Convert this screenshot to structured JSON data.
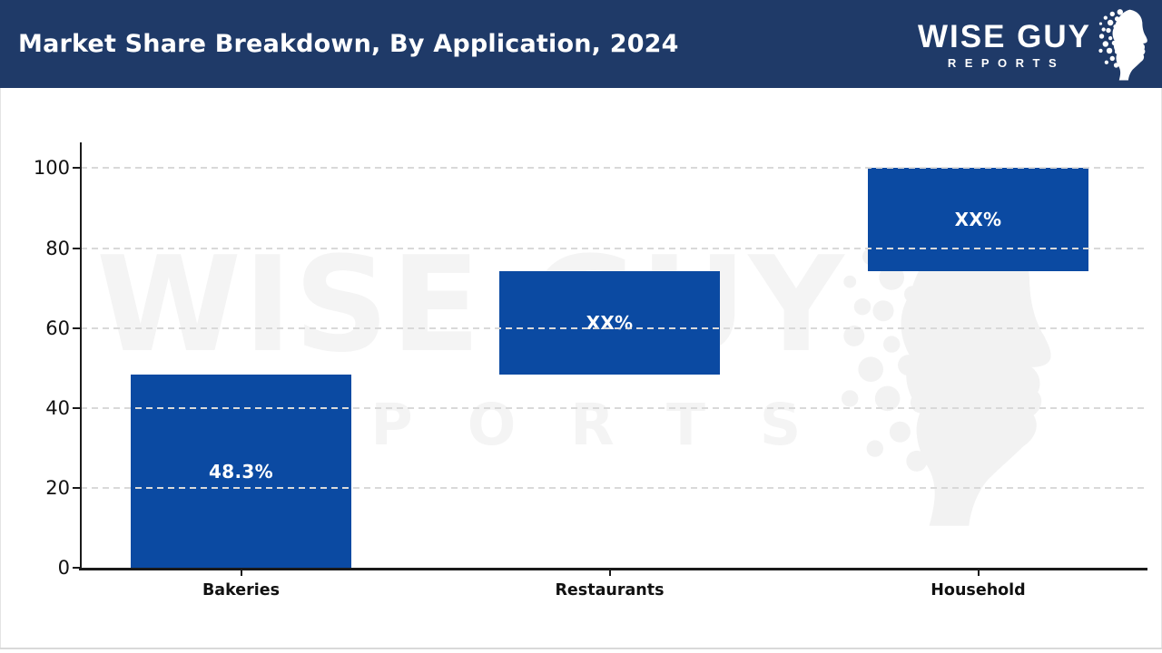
{
  "header": {
    "title": "Market Share Breakdown, By Application, 2024"
  },
  "logo": {
    "name": "WISE GUY",
    "sub": "REPORTS"
  },
  "watermark": {
    "line1": "WISE GUY",
    "line2": "REPORTS"
  },
  "chart_data": {
    "type": "bar",
    "subtype": "waterfall-stacked",
    "title": "Market Share Breakdown, By Application, 2024",
    "categories": [
      "Bakeries",
      "Restaurants",
      "Household"
    ],
    "segments": [
      {
        "category": "Bakeries",
        "start": 0,
        "end": 48.3,
        "label": "48.3%"
      },
      {
        "category": "Restaurants",
        "start": 48.3,
        "end": 74.3,
        "label": "XX%"
      },
      {
        "category": "Household",
        "start": 74.3,
        "end": 100,
        "label": "XX%"
      }
    ],
    "values": [
      48.3,
      26.0,
      25.7
    ],
    "labels": [
      "48.3%",
      "XX%",
      "XX%"
    ],
    "xlabel": "",
    "ylabel": "",
    "ylim": [
      0,
      106
    ],
    "yticks": [
      0,
      20,
      40,
      60,
      80,
      100
    ],
    "grid": "horizontal-dashed",
    "legend": false
  },
  "colors": {
    "header_bg": "#1f3a68",
    "bar": "#0b4aa2",
    "bar_label": "#ffffff",
    "grid": "#d9d9d9",
    "axis": "#1a1a1a",
    "watermark": "#f3f3f3"
  }
}
